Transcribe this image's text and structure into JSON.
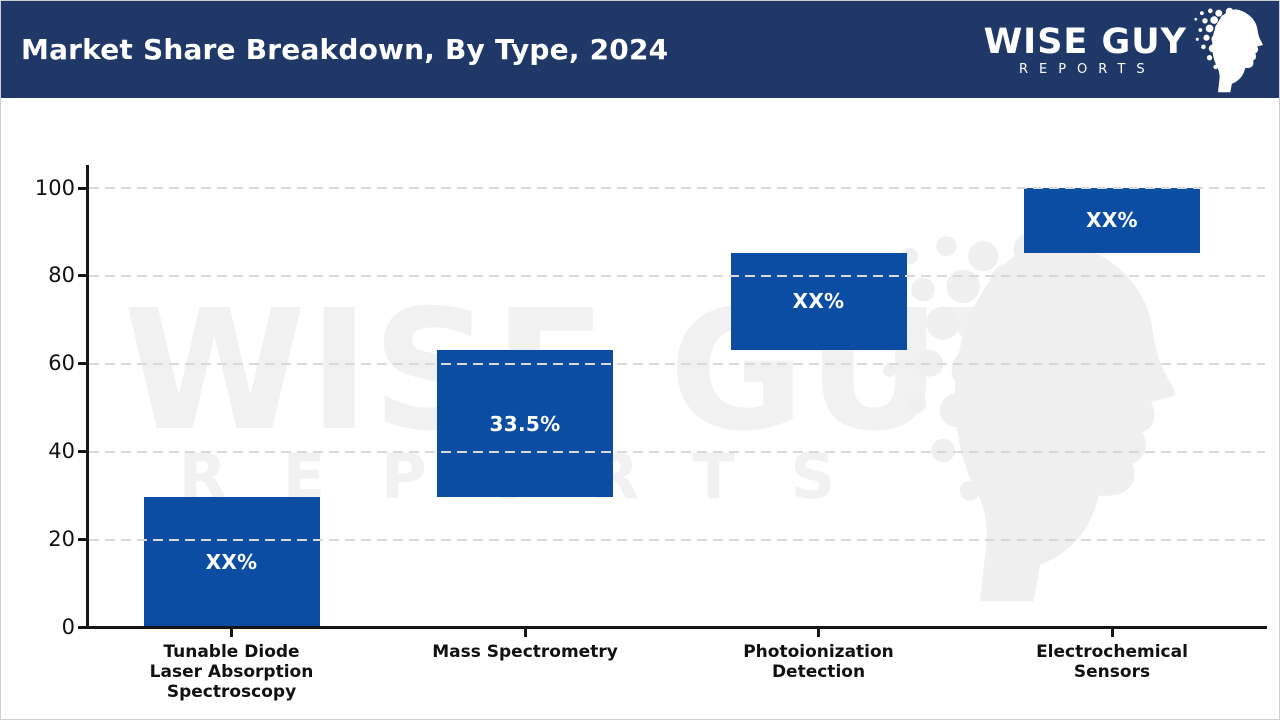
{
  "header": {
    "title": "Market Share Breakdown, By Type, 2024",
    "logo": {
      "name": "WISE GUY",
      "sub": "REPORTS"
    }
  },
  "watermark": {
    "text1": "WISE GUY",
    "text2": "REPORTS"
  },
  "chart_data": {
    "type": "bar",
    "subtype": "waterfall (floating stacked segments)",
    "title": "Market Share Breakdown, By Type, 2024",
    "categories": [
      "Tunable Diode\nLaser Absorption\nSpectroscopy",
      "Mass Spectrometry",
      "Photoionization\nDetection",
      "Electrochemical\nSensors"
    ],
    "segments": [
      {
        "category": "Tunable Diode Laser Absorption Spectroscopy",
        "start": 0,
        "end": 29.6,
        "label": "XX%"
      },
      {
        "category": "Mass Spectrometry",
        "start": 29.6,
        "end": 63.1,
        "label": "33.5%"
      },
      {
        "category": "Photoionization Detection",
        "start": 63.1,
        "end": 85.3,
        "label": "XX%"
      },
      {
        "category": "Electrochemical Sensors",
        "start": 85.3,
        "end": 100,
        "label": "XX%"
      }
    ],
    "yticks": [
      0,
      20,
      40,
      60,
      80,
      100
    ],
    "ylim": [
      0,
      105
    ],
    "xlabel": "",
    "ylabel": "",
    "grid": "horizontal dashed",
    "legend": "none",
    "bar_color": "#0c4da4",
    "bar_label_color": "#ffffff"
  },
  "colors": {
    "header_bg": "#1f3868",
    "bar": "#0c4da4",
    "grid": "#d9d9d9",
    "axis": "#161616",
    "watermark": "#f1f1f1",
    "page_border": "#cfcfcf"
  }
}
